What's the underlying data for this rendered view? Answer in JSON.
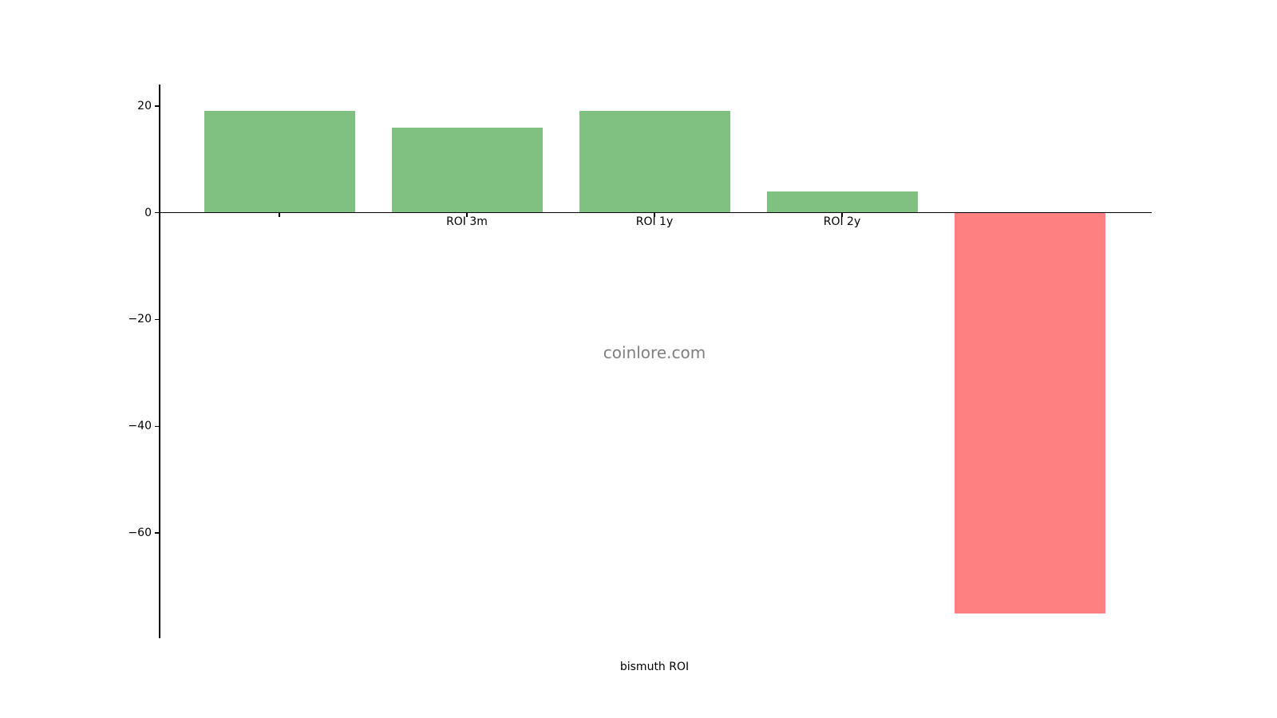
{
  "page": {
    "background": "#ffffff"
  },
  "watermark": {
    "text": "coinlore.com",
    "color": "#7f7f7f"
  },
  "chart_data": {
    "type": "bar",
    "title": "",
    "xlabel": "bismuth ROI",
    "ylabel": "",
    "categories": [
      "",
      "ROI 3m",
      "ROI 1y",
      "ROI 2y",
      ""
    ],
    "values": [
      19,
      16,
      19,
      4,
      -75
    ],
    "bar_colors": [
      "#80c080",
      "#80c080",
      "#80c080",
      "#80c080",
      "#ff8080"
    ],
    "positive_color": "#80c080",
    "negative_color": "#ff8080",
    "yticks": [
      20,
      0,
      -20,
      -40,
      -60
    ],
    "ytick_labels": [
      "20",
      "0",
      "−20",
      "−40",
      "−60"
    ],
    "ylim": [
      -79.7,
      24.0
    ],
    "grid": false,
    "legend": false,
    "axis_color": "#000000"
  }
}
